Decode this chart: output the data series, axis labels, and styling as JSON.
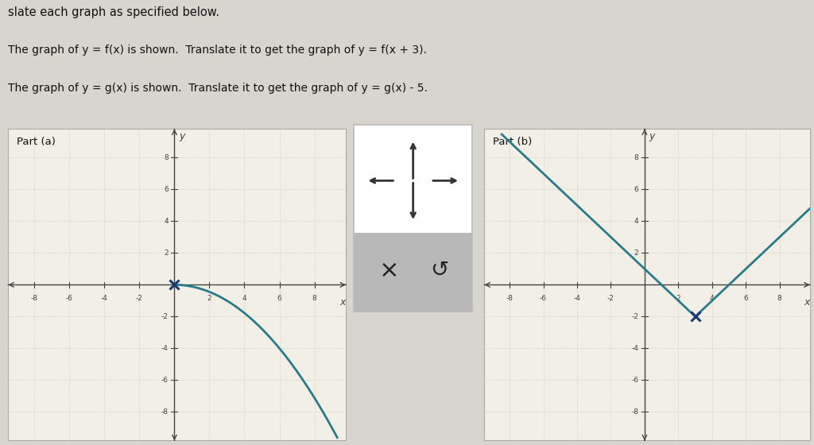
{
  "bg_color": "#d8d5ce",
  "panel_bg": "#f2efe6",
  "grid_color": "#c0bcb0",
  "axis_color": "#444444",
  "curve_color": "#2a7a8a",
  "curve_linewidth": 2.0,
  "marker_color": "#1a3a6a",
  "text_color": "#111111",
  "part_a_label": "Part (a)",
  "part_a_xlim": [
    -9.5,
    9.8
  ],
  "part_a_ylim": [
    -9.8,
    9.8
  ],
  "part_a_xticks": [
    -8,
    -6,
    -4,
    -2,
    2,
    4,
    6,
    8
  ],
  "part_a_yticks": [
    -8,
    -6,
    -4,
    -2,
    2,
    4,
    6,
    8
  ],
  "part_b_label": "Part (b)",
  "part_b_xlim": [
    -9.5,
    9.8
  ],
  "part_b_ylim": [
    -9.8,
    9.8
  ],
  "part_b_xticks": [
    -8,
    -6,
    -4,
    -2,
    2,
    4,
    6,
    8
  ],
  "part_b_yticks": [
    -8,
    -6,
    -4,
    -2,
    2,
    4,
    6,
    8
  ],
  "header_line1": "slate each graph as specified below.",
  "header_line2": "The graph of y = f(x) is shown.  Translate it to get the graph of y = f(x + 3).",
  "header_line3": "The graph of y = g(x) is shown.  Translate it to get the graph of y = g(x) - 5.",
  "popup_bg": "white",
  "popup_bar_color": "#b8b8b8"
}
